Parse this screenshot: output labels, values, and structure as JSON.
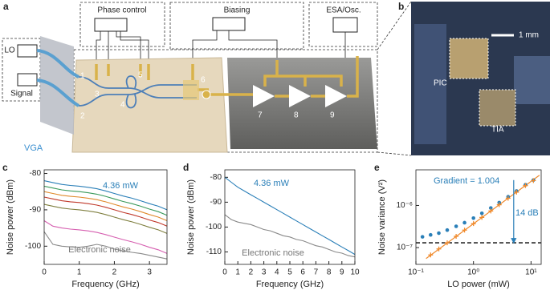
{
  "figure": {
    "a": {
      "label": "a",
      "boxes": [
        "Phase control",
        "Biasing",
        "ESA/Osc."
      ],
      "inputs": [
        "LO",
        "Signal"
      ],
      "vga": "VGA",
      "components": [
        "1",
        "2",
        "3",
        "4",
        "5",
        "6",
        "7",
        "8",
        "9"
      ]
    },
    "b": {
      "label": "b",
      "scale": "1 mm",
      "pic": "PIC",
      "tia": "TIA"
    }
  },
  "chart_data": [
    {
      "type": "line",
      "label": "c",
      "xlabel": "Frequency (GHz)",
      "ylabel": "Noise power (dBm)",
      "x": [
        0,
        0.25,
        0.5,
        0.75,
        1,
        1.25,
        1.5,
        1.75,
        2,
        2.25,
        2.5,
        2.75,
        3,
        3.25,
        3.5
      ],
      "xlim": [
        0,
        3.5
      ],
      "xticks": [
        0,
        1,
        2,
        3
      ],
      "ylim": [
        -105,
        -79
      ],
      "yticks": [
        -100,
        -90,
        -80
      ],
      "series": [
        {
          "color": "#2a7fb8",
          "values": [
            -82,
            -82.5,
            -83,
            -83.3,
            -83.5,
            -83.8,
            -84.2,
            -84.8,
            -85.5,
            -86.2,
            -86.8,
            -87.5,
            -88.3,
            -89,
            -90
          ]
        },
        {
          "color": "#3a9a5b",
          "values": [
            -83.5,
            -84,
            -84.5,
            -84.8,
            -85,
            -85.3,
            -85.7,
            -86.3,
            -87,
            -87.7,
            -88.3,
            -89,
            -89.8,
            -90.5,
            -91.5
          ]
        },
        {
          "color": "#e08a2c",
          "values": [
            -85,
            -85.5,
            -86,
            -86.3,
            -86.5,
            -86.8,
            -87.2,
            -87.8,
            -88.5,
            -89.2,
            -89.8,
            -90.5,
            -91.3,
            -92,
            -93
          ]
        },
        {
          "color": "#c0392b",
          "values": [
            -86.5,
            -87,
            -87.5,
            -87.8,
            -88,
            -88.3,
            -88.7,
            -89.3,
            -90,
            -90.7,
            -91.3,
            -92,
            -92.8,
            -93.5,
            -94.5
          ]
        },
        {
          "color": "#7f7f3f",
          "values": [
            -88.5,
            -89,
            -89.5,
            -89.8,
            -90,
            -90.3,
            -90.7,
            -91.3,
            -92,
            -92.7,
            -93.3,
            -94,
            -94.8,
            -95.5,
            -96.5
          ]
        },
        {
          "color": "#d65fb0",
          "values": [
            -93,
            -94.5,
            -95,
            -95.3,
            -95.5,
            -95.8,
            -96.2,
            -96.8,
            -97.5,
            -98.2,
            -98.8,
            -99.5,
            -100.3,
            -101,
            -102
          ]
        },
        {
          "color": "#8a8a8a",
          "values": [
            -96,
            -99.5,
            -100,
            -100.2,
            -100.3,
            -100,
            -99.5,
            -100,
            -100.8,
            -101.3,
            -101.7,
            -102,
            -102.5,
            -103,
            -103.5
          ]
        }
      ],
      "annotations": [
        {
          "text": "4.36 mW",
          "color": "#2a7fb8"
        },
        {
          "text": "Electronic noise",
          "color": "#777777"
        }
      ]
    },
    {
      "type": "line",
      "label": "d",
      "xlabel": "Frequency (GHz)",
      "ylabel": "Noise power (dBm)",
      "x": [
        0,
        0.5,
        1,
        1.5,
        2,
        2.5,
        3,
        3.5,
        4,
        4.5,
        5,
        5.5,
        6,
        6.5,
        7,
        7.5,
        8,
        8.5,
        9,
        9.5,
        10
      ],
      "xlim": [
        0,
        10
      ],
      "xticks": [
        0,
        1,
        2,
        3,
        4,
        5,
        6,
        7,
        8,
        9,
        10
      ],
      "ylim": [
        -115,
        -77
      ],
      "yticks": [
        -110,
        -100,
        -90,
        -80
      ],
      "series": [
        {
          "color": "#2a7fb8",
          "values": [
            -80,
            -82,
            -84,
            -85.5,
            -87,
            -88.5,
            -90,
            -91.5,
            -93,
            -94.5,
            -96,
            -97.5,
            -99,
            -100.5,
            -102,
            -103.5,
            -105,
            -106.5,
            -108,
            -109.5,
            -111
          ]
        },
        {
          "color": "#8a8a8a",
          "values": [
            -95,
            -97,
            -98,
            -98.5,
            -99,
            -100,
            -101,
            -101.5,
            -102.5,
            -103.5,
            -104,
            -105,
            -105.5,
            -106.5,
            -107.5,
            -108,
            -109,
            -110,
            -110.5,
            -111.5,
            -112
          ]
        }
      ],
      "annotations": [
        {
          "text": "4.36 mW",
          "color": "#2a7fb8"
        },
        {
          "text": "Electronic noise",
          "color": "#777777"
        }
      ]
    },
    {
      "type": "scatter",
      "label": "e",
      "xlabel": "LO power (mW)",
      "ylabel": "Noise variance (V²)",
      "xscale": "log",
      "yscale": "log",
      "x": [
        0.13,
        0.18,
        0.25,
        0.35,
        0.5,
        0.7,
        1,
        1.4,
        2,
        2.8,
        4,
        5.6,
        8,
        11
      ],
      "xlim": [
        0.1,
        15
      ],
      "xticks": [
        {
          "value": 0.1,
          "label": "10⁻¹"
        },
        {
          "value": 1,
          "label": "10⁰"
        },
        {
          "value": 10,
          "label": "10¹"
        }
      ],
      "ylim": [
        4e-08,
        7e-06
      ],
      "yticks": [
        {
          "value": 1e-07,
          "label": "10⁻⁷"
        },
        {
          "value": 1e-06,
          "label": "10⁻⁶"
        }
      ],
      "series": [
        {
          "color": "#2a7fb8",
          "marker": "circle",
          "values": [
            1.8e-07,
            2e-07,
            2.2e-07,
            2.6e-07,
            3.2e-07,
            3.9e-07,
            5e-07,
            6.5e-07,
            8.7e-07,
            1.17e-06,
            1.61e-06,
            2.2e-06,
            3.1e-06,
            4e-06
          ]
        },
        {
          "color": "#f08a2c",
          "marker": "cross",
          "values": [
            null,
            6.7e-08,
            9.3e-08,
            1.3e-07,
            1.85e-07,
            2.6e-07,
            3.7e-07,
            5.2e-07,
            7.4e-07,
            1.04e-06,
            1.48e-06,
            2.07e-06,
            2.96e-06,
            3.9e-06
          ]
        }
      ],
      "fit": {
        "color": "#f08a2c",
        "x": [
          0.15,
          14
        ],
        "values": [
          5.5e-08,
          5.2e-06
        ]
      },
      "reference_line": 1.3e-07,
      "arrow": {
        "color": "#2a7fb8",
        "x": 5,
        "from": 4e-06,
        "to": 1.3e-07
      },
      "annotations": [
        {
          "text": "Gradient = 1.004",
          "color": "#2a7fb8"
        },
        {
          "text": "14 dB",
          "color": "#2a7fb8"
        }
      ]
    }
  ]
}
